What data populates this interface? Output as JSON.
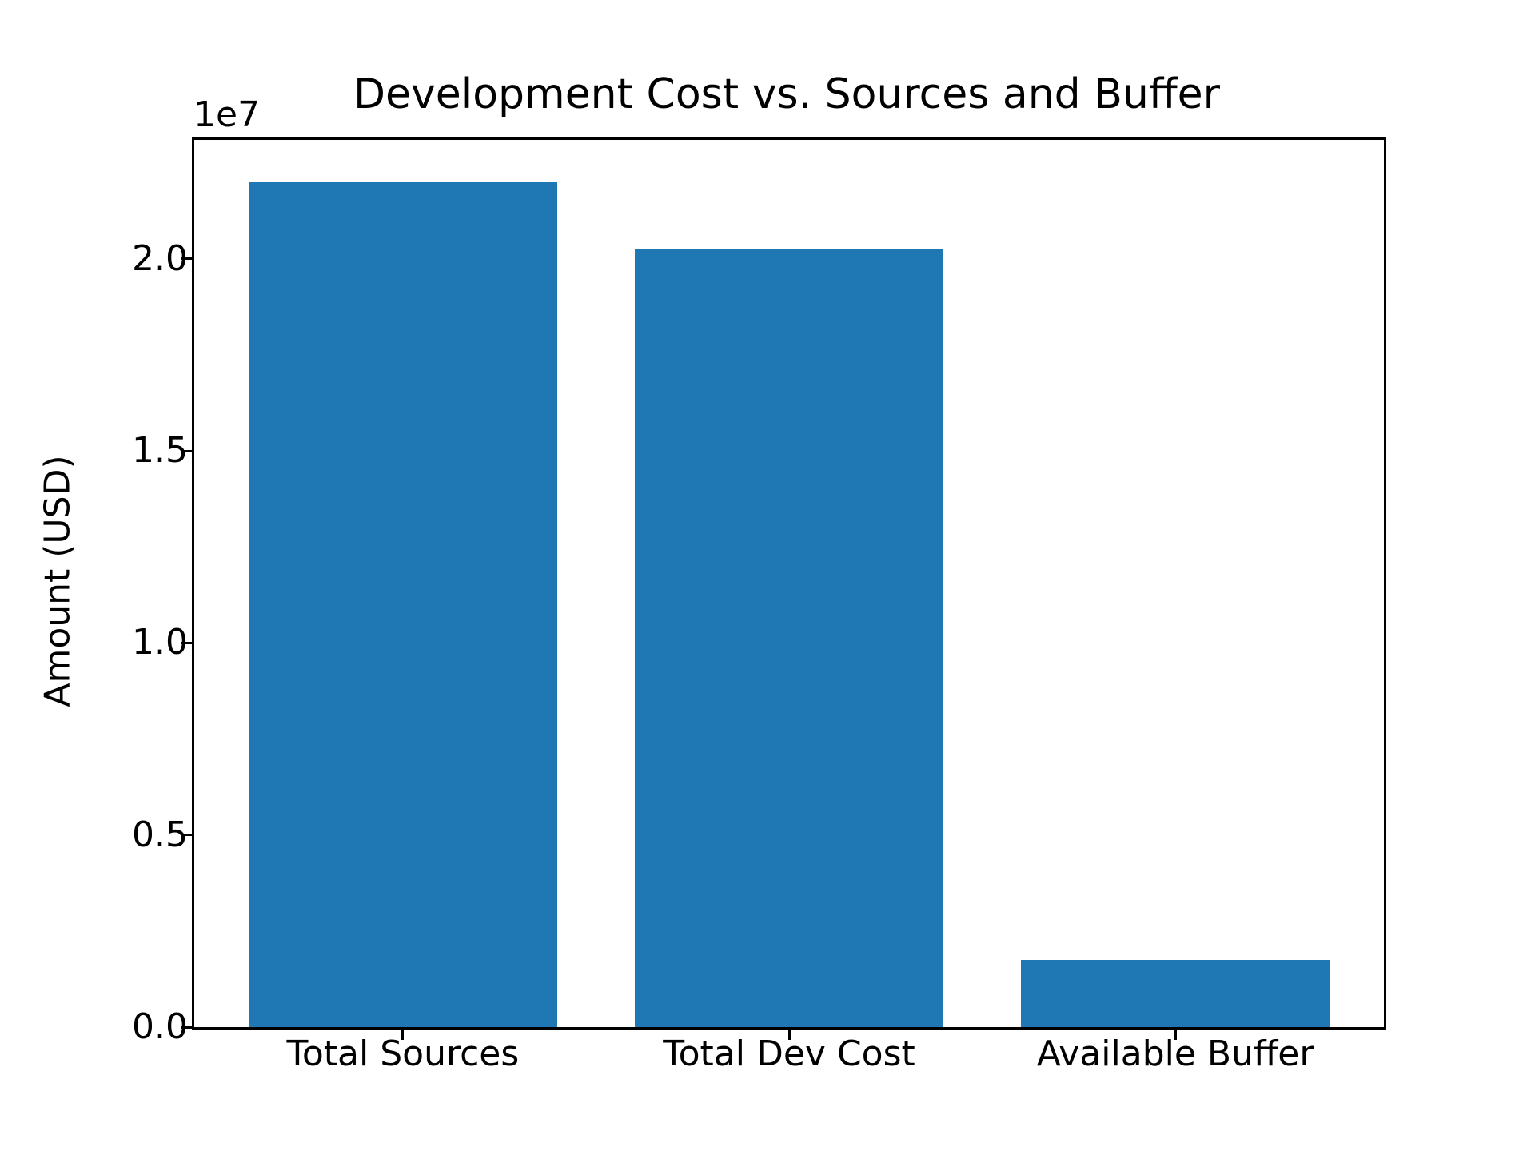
{
  "figure": {
    "background": "#ffffff",
    "text_color": "#000000"
  },
  "chart_data": {
    "type": "bar",
    "title": "Development Cost vs. Sources and Buffer",
    "xlabel": "",
    "ylabel": "Amount (USD)",
    "categories": [
      "Total Sources",
      "Total Dev Cost",
      "Available Buffer"
    ],
    "values": [
      22000000,
      20250000,
      1750000
    ],
    "bar_color": "#1f77b4",
    "bar_width": 0.8,
    "ylim": [
      0,
      23100000
    ],
    "xlim": [
      -0.54,
      2.54
    ],
    "yticks": {
      "values": [
        0,
        5000000,
        10000000,
        15000000,
        20000000
      ],
      "labels": [
        "0.0",
        "0.5",
        "1.0",
        "1.5",
        "2.0"
      ]
    },
    "offset_text": "1e7",
    "grid": false,
    "legend_position": "none"
  }
}
